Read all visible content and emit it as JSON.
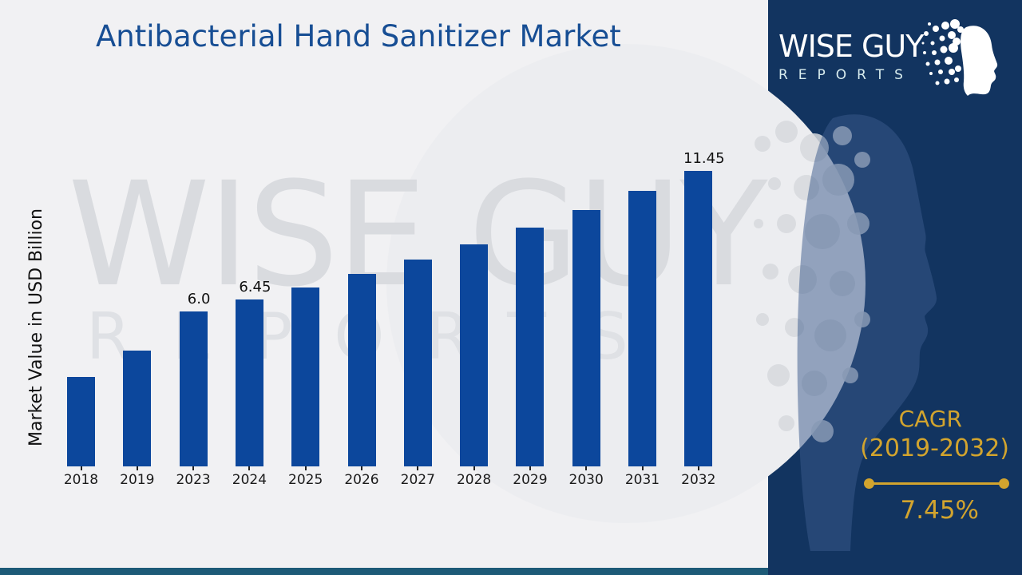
{
  "chart_data": {
    "type": "bar",
    "title": "Antibacterial Hand Sanitizer Market",
    "xlabel": "",
    "ylabel": "Market Value in USD Billion",
    "categories": [
      "2018",
      "2019",
      "2023",
      "2024",
      "2025",
      "2026",
      "2027",
      "2028",
      "2029",
      "2030",
      "2031",
      "2032"
    ],
    "values": [
      3.45,
      4.5,
      6.0,
      6.45,
      6.93,
      7.45,
      8.0,
      8.6,
      9.24,
      9.93,
      10.67,
      11.45
    ],
    "point_labels": [
      "",
      "",
      "6.0",
      "6.45",
      "",
      "",
      "",
      "",
      "",
      "",
      "",
      "11.45"
    ],
    "ylim": [
      0,
      13.4
    ],
    "grid": false,
    "legend": false,
    "bar_color": "#0c479c"
  },
  "watermark": {
    "line1": "WISE GUY",
    "line2": "REPORTS"
  },
  "brand": {
    "line1": "WISE GUY",
    "line2": "REPORTS"
  },
  "cagr": {
    "label": "CAGR",
    "period": "(2019-2032)",
    "value": "7.45%"
  },
  "colors": {
    "background": "#f1f1f3",
    "navy": "#123460",
    "bar": "#0c479c",
    "gold": "#d2a42e",
    "teal": "#1d5a77",
    "title": "#174e94"
  }
}
